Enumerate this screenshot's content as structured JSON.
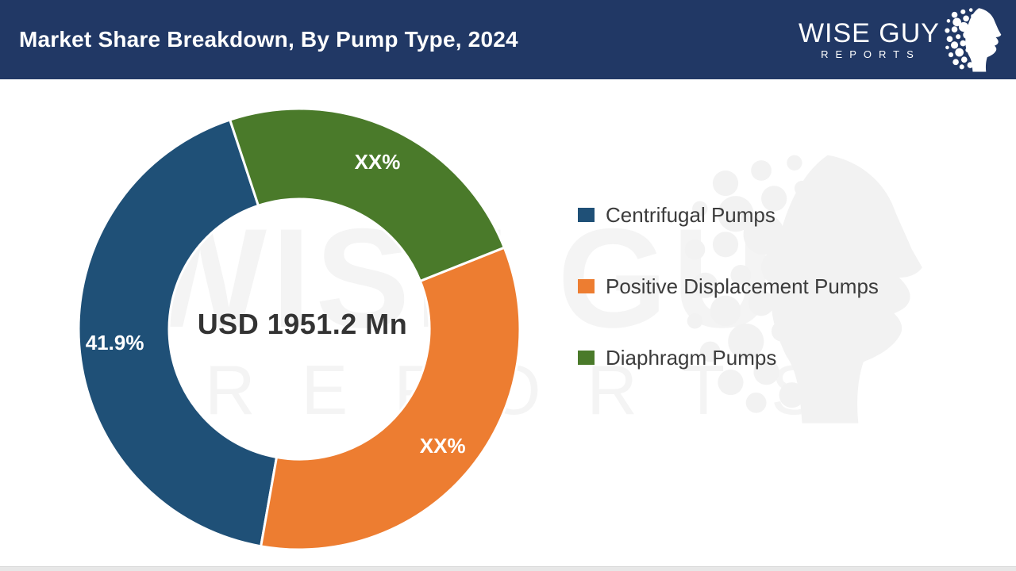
{
  "header": {
    "title": "Market Share Breakdown, By Pump Type, 2024",
    "logo": {
      "wordmark": "WISE GUY",
      "subtitle": "REPORTS"
    }
  },
  "watermark": {
    "wordmark": "WISE GUY",
    "subtitle": "REPORTS"
  },
  "chart_data": {
    "type": "donut",
    "title": "Market Share Breakdown, By Pump Type, 2024",
    "center_label": "USD 1951.2 Mn",
    "legend_position": "right",
    "hole_ratio": 0.59,
    "segments": [
      {
        "name": "Centrifugal Pumps",
        "value_label": "41.9%",
        "percent": 41.9,
        "color": "#1F5077",
        "start_deg": 190.0,
        "end_deg": 341.7
      },
      {
        "name": "Positive Displacement Pumps",
        "value_label": "XX%",
        "percent": null,
        "color": "#ED7D31",
        "start_deg": 68.3,
        "end_deg": 190.0
      },
      {
        "name": "Diaphragm Pumps",
        "value_label": "XX%",
        "percent": null,
        "color": "#4A7A2A",
        "start_deg": 341.7,
        "end_deg": 428.3
      }
    ]
  }
}
